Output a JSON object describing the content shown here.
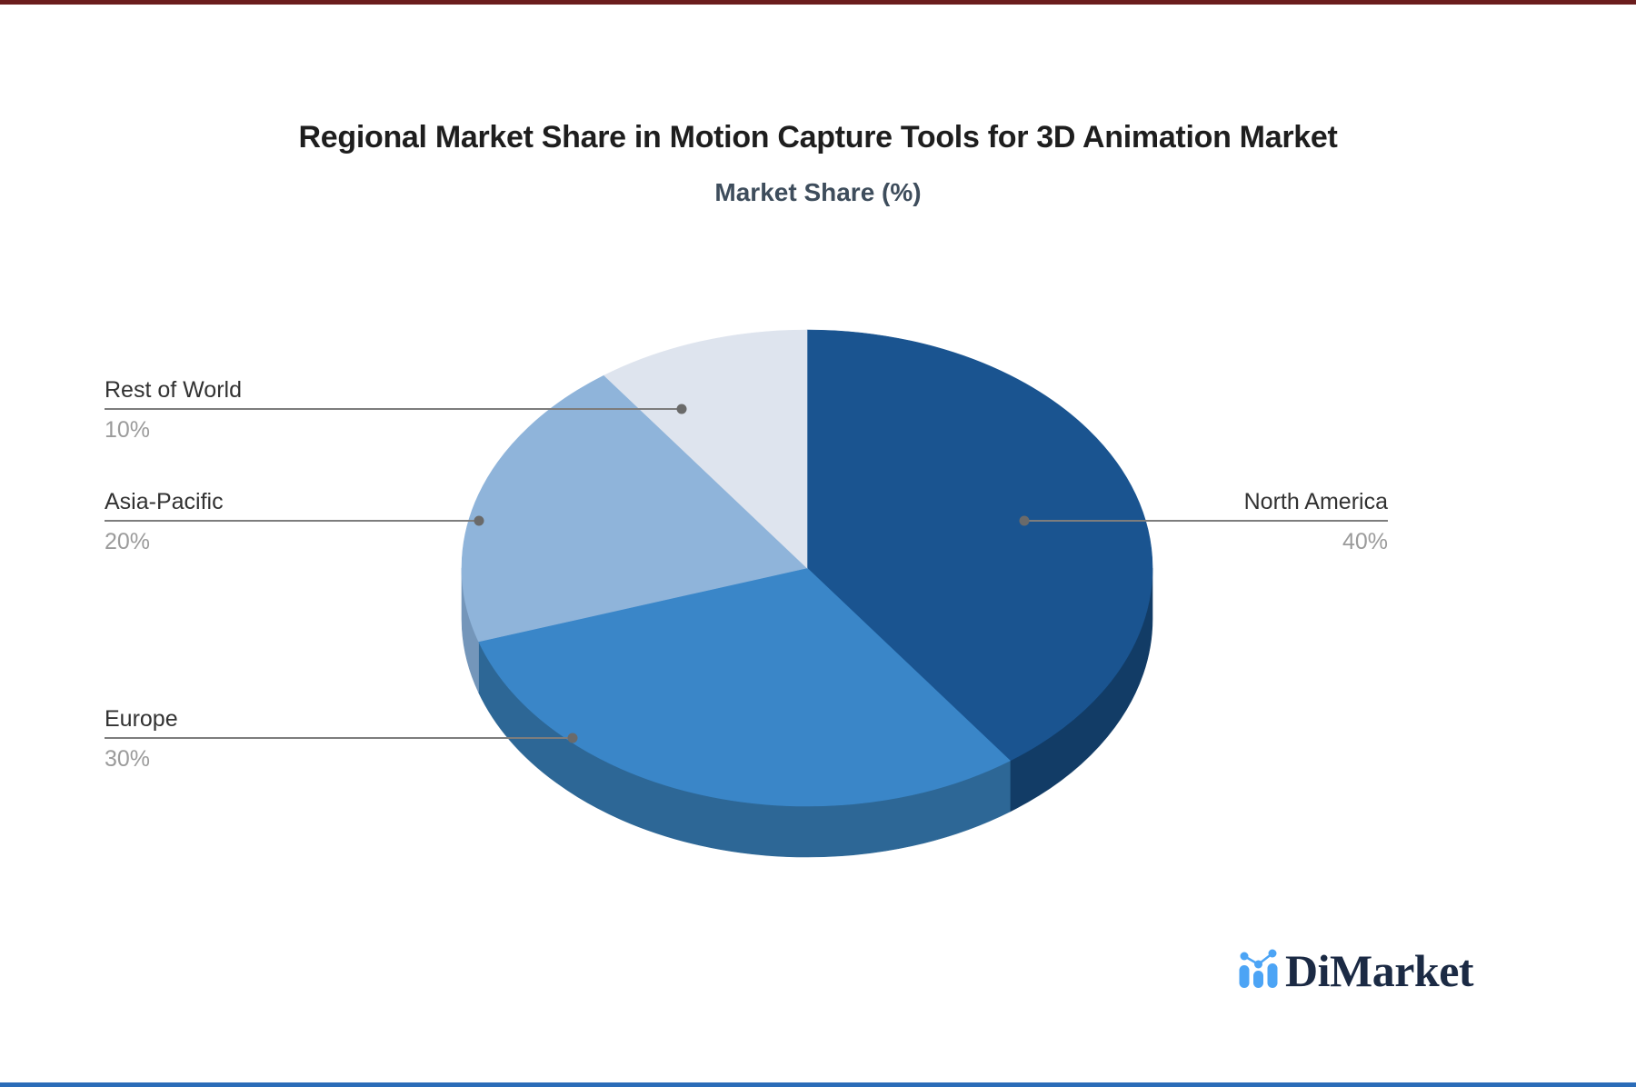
{
  "chart_data": {
    "type": "pie",
    "style": "3d",
    "title": "Regional Market Share in Motion Capture Tools for 3D Animation Market",
    "subtitle": "Market Share (%)",
    "unit": "%",
    "start_angle": "12-o-clock",
    "direction": "clockwise",
    "legend_position": "none (leader-line labels beside slices)",
    "categories": [
      "North America",
      "Europe",
      "Asia-Pacific",
      "Rest of World"
    ],
    "values": [
      40,
      30,
      20,
      10
    ],
    "slices": [
      {
        "name": "North America",
        "value": 40,
        "pct_label": "40%",
        "color": "#1A5490",
        "side_color": "#123C66"
      },
      {
        "name": "Europe",
        "value": 30,
        "pct_label": "30%",
        "color": "#3A86C8",
        "side_color": "#2D6796"
      },
      {
        "name": "Asia-Pacific",
        "value": 20,
        "pct_label": "20%",
        "color": "#8FB4DA",
        "side_color": "#7496BA"
      },
      {
        "name": "Rest of World",
        "value": 10,
        "pct_label": "10%",
        "color": "#DEE4EE",
        "side_color": "#C3CCDA"
      }
    ]
  },
  "leader_style": {
    "line_color": "#7D7D7D",
    "dot_color": "#6A6A6A",
    "label_color": "#323232",
    "pct_color": "#9B9B9B"
  },
  "watermark": {
    "brand": "DiMarket",
    "icon": "mini-bar-line-chart-icon",
    "icon_color": "#4CA4F5",
    "text_color": "#1B2A44"
  },
  "accent_strips": {
    "top": "#6B1D1D",
    "bottom": "#2B6CB8"
  }
}
